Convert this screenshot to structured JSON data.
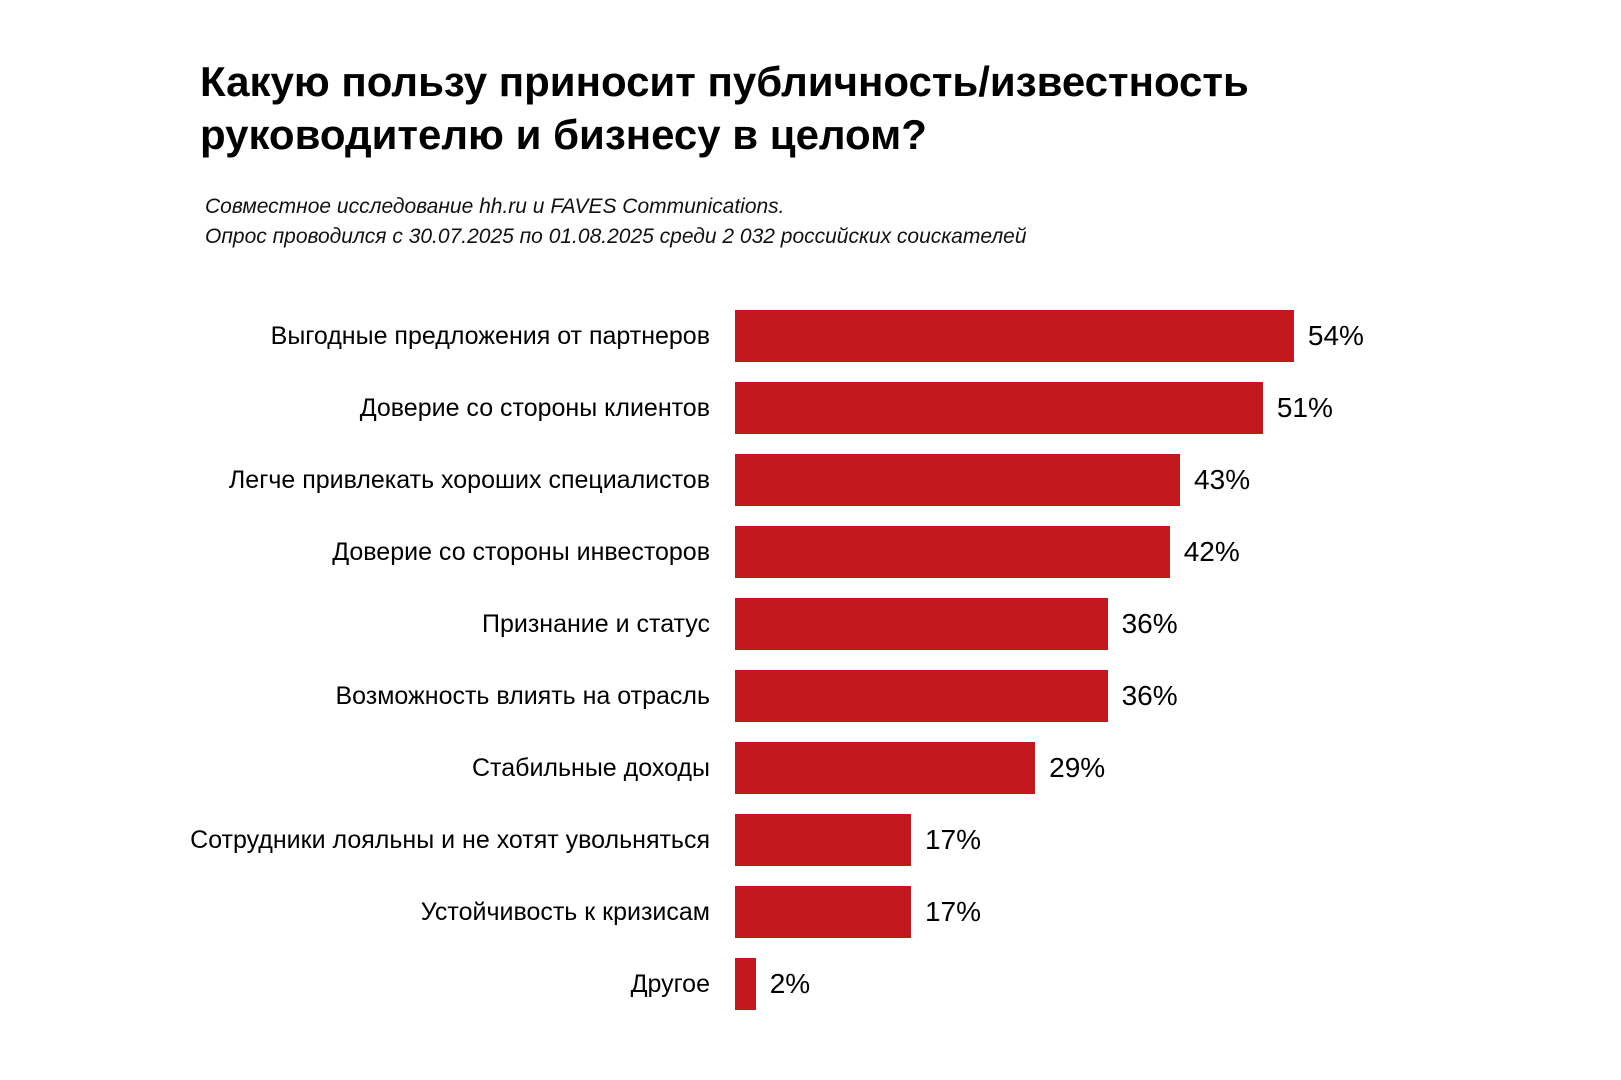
{
  "chart_data": {
    "type": "bar",
    "orientation": "horizontal",
    "title": "Какую пользу приносит публичность/известность руководителю и бизнесу в целом?",
    "subtitle_line1": "Совместное исследование hh.ru и FAVES Communications.",
    "subtitle_line2": "Опрос проводился с 30.07.2025 по 01.08.2025 среди 2 032 российских соискателей",
    "categories": [
      "Выгодные предложения от партнеров",
      "Доверие со стороны клиентов",
      "Легче привлекать хороших специалистов",
      "Доверие со стороны инвесторов",
      "Признание и статус",
      "Возможность влиять на отрасль",
      "Стабильные доходы",
      "Сотрудники лояльны и не хотят увольняться",
      "Устойчивость к кризисам",
      "Другое"
    ],
    "values": [
      54,
      51,
      43,
      42,
      36,
      36,
      29,
      17,
      17,
      2
    ],
    "value_suffix": "%",
    "bar_color": "#c2171d",
    "text_color": "#000000",
    "background_color": "#ffffff",
    "xlim": [
      0,
      60
    ],
    "grid": false,
    "legend": false,
    "data_labels": "outside-end"
  }
}
